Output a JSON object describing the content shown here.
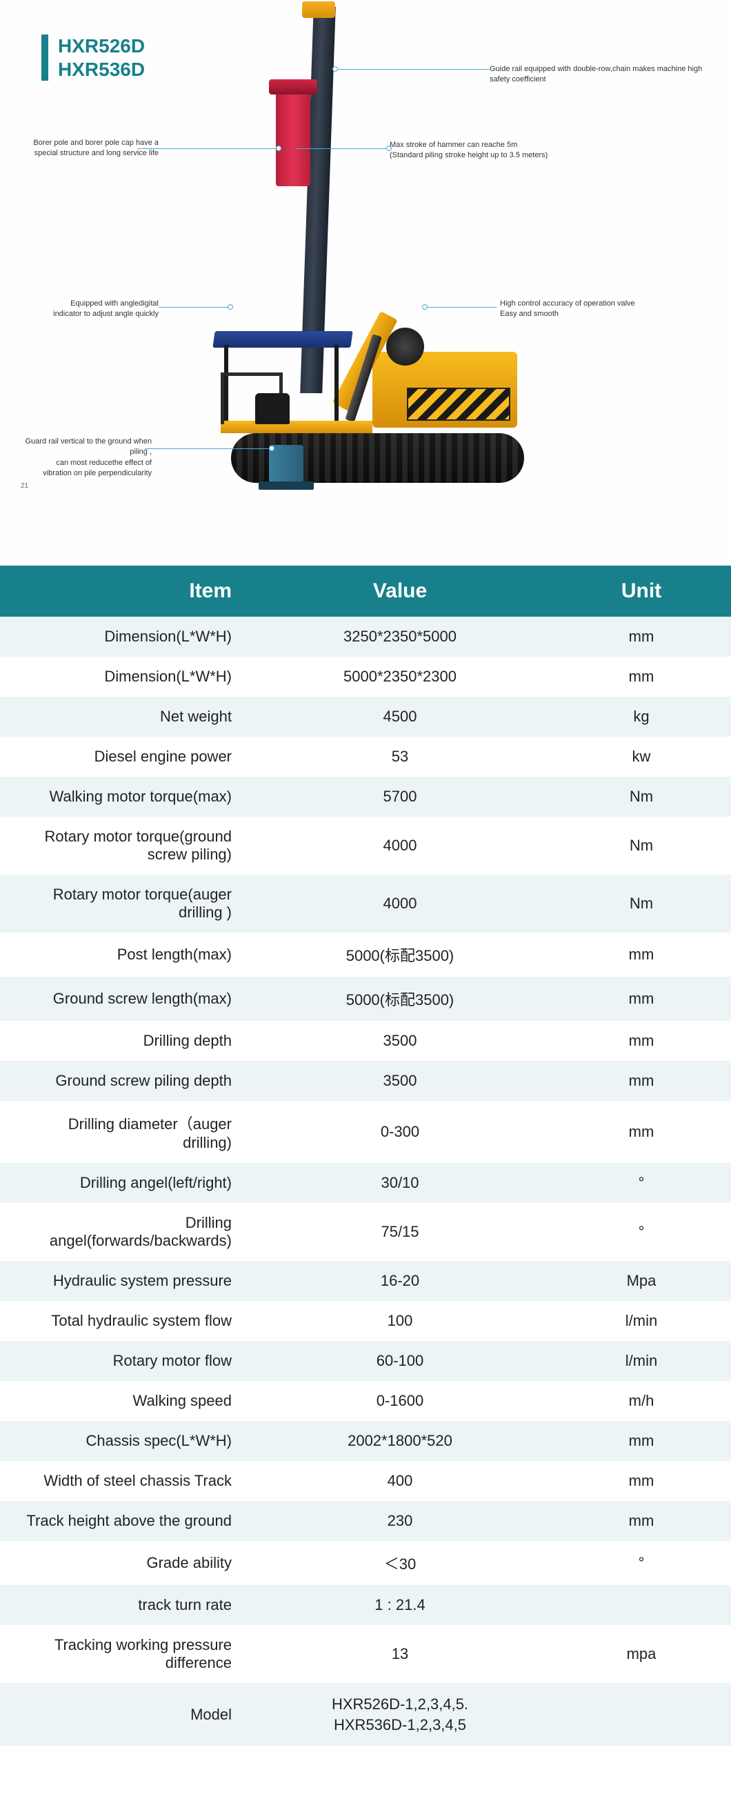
{
  "header": {
    "models": [
      "HXR526D",
      "HXR536D"
    ],
    "page_number": "21",
    "accent_color": "#17808b"
  },
  "annotations": {
    "guide_rail": "Guide rail equipped with double-row,chain makes machine high safety coefficient",
    "borer_pole": "Borer pole and borer pole cap have a special structure and long service life",
    "max_stroke_l1": "Max stroke of hammer can reache 5m",
    "max_stroke_l2": "(Standard piling stroke height up to 3.5 meters)",
    "angle_ind_l1": "Equipped with angledigital",
    "angle_ind_l2": "indicator to adjust angle quickly",
    "op_valve_l1": "High control accuracy of operation valve",
    "op_valve_l2": "Easy and smooth",
    "guard_rail_l1": "Guard rail vertical to the ground when piling ,",
    "guard_rail_l2": "can most reducethe effect of",
    "guard_rail_l3": "vibration on pile perpendicularity"
  },
  "table": {
    "headers": {
      "item": "Item",
      "value": "Value",
      "unit": "Unit"
    },
    "header_bg": "#17808b",
    "row_alt_bg": "#ecf4f5",
    "rows": [
      {
        "item": "Dimension(L*W*H)",
        "value": "3250*2350*5000",
        "unit": "mm"
      },
      {
        "item": "Dimension(L*W*H)",
        "value": "5000*2350*2300",
        "unit": "mm"
      },
      {
        "item": "Net weight",
        "value": "4500",
        "unit": "kg"
      },
      {
        "item": "Diesel engine power",
        "value": "53",
        "unit": "kw"
      },
      {
        "item": "Walking motor torque(max)",
        "value": "5700",
        "unit": "Nm"
      },
      {
        "item": "Rotary motor torque(ground screw piling)",
        "value": "4000",
        "unit": "Nm"
      },
      {
        "item": "Rotary motor torque(auger drilling )",
        "value": "4000",
        "unit": "Nm"
      },
      {
        "item": "Post length(max)",
        "value": "5000(标配3500)",
        "unit": "mm"
      },
      {
        "item": "Ground screw length(max)",
        "value": "5000(标配3500)",
        "unit": "mm"
      },
      {
        "item": "Drilling depth",
        "value": "3500",
        "unit": "mm"
      },
      {
        "item": "Ground screw piling depth",
        "value": "3500",
        "unit": "mm"
      },
      {
        "item": "Drilling diameter（auger drilling)",
        "value": "0-300",
        "unit": "mm"
      },
      {
        "item": "Drilling angel(left/right)",
        "value": "30/10",
        "unit": "°"
      },
      {
        "item": "Drilling angel(forwards/backwards)",
        "value": "75/15",
        "unit": "°"
      },
      {
        "item": "Hydraulic system pressure",
        "value": "16-20",
        "unit": "Mpa"
      },
      {
        "item": "Total hydraulic system flow",
        "value": "100",
        "unit": "l/min"
      },
      {
        "item": "Rotary motor flow",
        "value": "60-100",
        "unit": "l/min"
      },
      {
        "item": "Walking speed",
        "value": "0-1600",
        "unit": "m/h"
      },
      {
        "item": "Chassis spec(L*W*H)",
        "value": "2002*1800*520",
        "unit": "mm"
      },
      {
        "item": "Width of steel chassis Track",
        "value": "400",
        "unit": "mm"
      },
      {
        "item": "Track height above the ground",
        "value": "230",
        "unit": "mm"
      },
      {
        "item": "Grade ability",
        "value": "＜30",
        "unit": "°"
      },
      {
        "item": "track turn rate",
        "value": "1 : 21.4",
        "unit": ""
      },
      {
        "item": "Tracking working pressure difference",
        "value": "13",
        "unit": "mpa"
      },
      {
        "item": "Model",
        "value": "HXR526D-1,2,3,4,5.\nHXR536D-1,2,3,4,5",
        "unit": ""
      }
    ]
  }
}
